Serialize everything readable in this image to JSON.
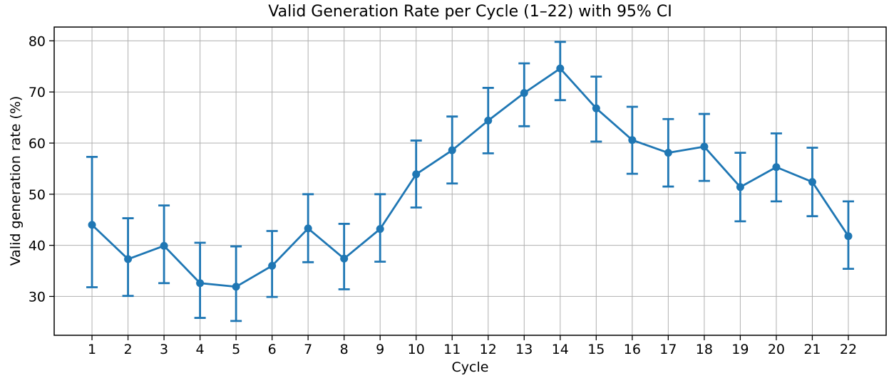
{
  "chart_data": {
    "type": "line",
    "title": "Valid Generation Rate per Cycle (1–22) with 95% CI",
    "xlabel": "Cycle",
    "ylabel": "Valid generation rate (%)",
    "x": [
      1,
      2,
      3,
      4,
      5,
      6,
      7,
      8,
      9,
      10,
      11,
      12,
      13,
      14,
      15,
      16,
      17,
      18,
      19,
      20,
      21,
      22
    ],
    "series": [
      {
        "name": "valid-generation-rate",
        "values": [
          44.0,
          37.3,
          39.9,
          32.6,
          31.9,
          36.0,
          43.3,
          37.4,
          43.2,
          53.9,
          58.6,
          64.4,
          69.8,
          74.6,
          66.8,
          60.6,
          58.1,
          59.3,
          51.4,
          55.3,
          52.4,
          41.8
        ],
        "ci_low": [
          31.8,
          30.1,
          32.6,
          25.8,
          25.2,
          29.9,
          36.7,
          31.4,
          36.8,
          47.4,
          52.1,
          58.0,
          63.3,
          68.4,
          60.3,
          54.0,
          51.5,
          52.6,
          44.7,
          48.6,
          45.7,
          35.4
        ],
        "ci_high": [
          57.3,
          45.3,
          47.8,
          40.5,
          39.8,
          42.8,
          50.0,
          44.2,
          50.0,
          60.5,
          65.2,
          70.8,
          75.6,
          79.8,
          73.0,
          67.1,
          64.7,
          65.7,
          58.1,
          61.9,
          59.1,
          48.6
        ]
      }
    ],
    "xticks": [
      1,
      2,
      3,
      4,
      5,
      6,
      7,
      8,
      9,
      10,
      11,
      12,
      13,
      14,
      15,
      16,
      17,
      18,
      19,
      20,
      21,
      22
    ],
    "yticks": [
      30,
      40,
      50,
      60,
      70,
      80
    ],
    "xlim": [
      -0.05,
      23.05
    ],
    "ylim": [
      22.4,
      82.7
    ],
    "grid": true,
    "legend_position": "none",
    "error_bar_style": "95% CI with caps",
    "colors": {
      "line": "#1f77b4",
      "marker": "#1f77b4",
      "error_bar": "#1f77b4",
      "grid": "#b0b0b0",
      "axis": "#000000",
      "text": "#000000",
      "background": "#ffffff"
    }
  }
}
